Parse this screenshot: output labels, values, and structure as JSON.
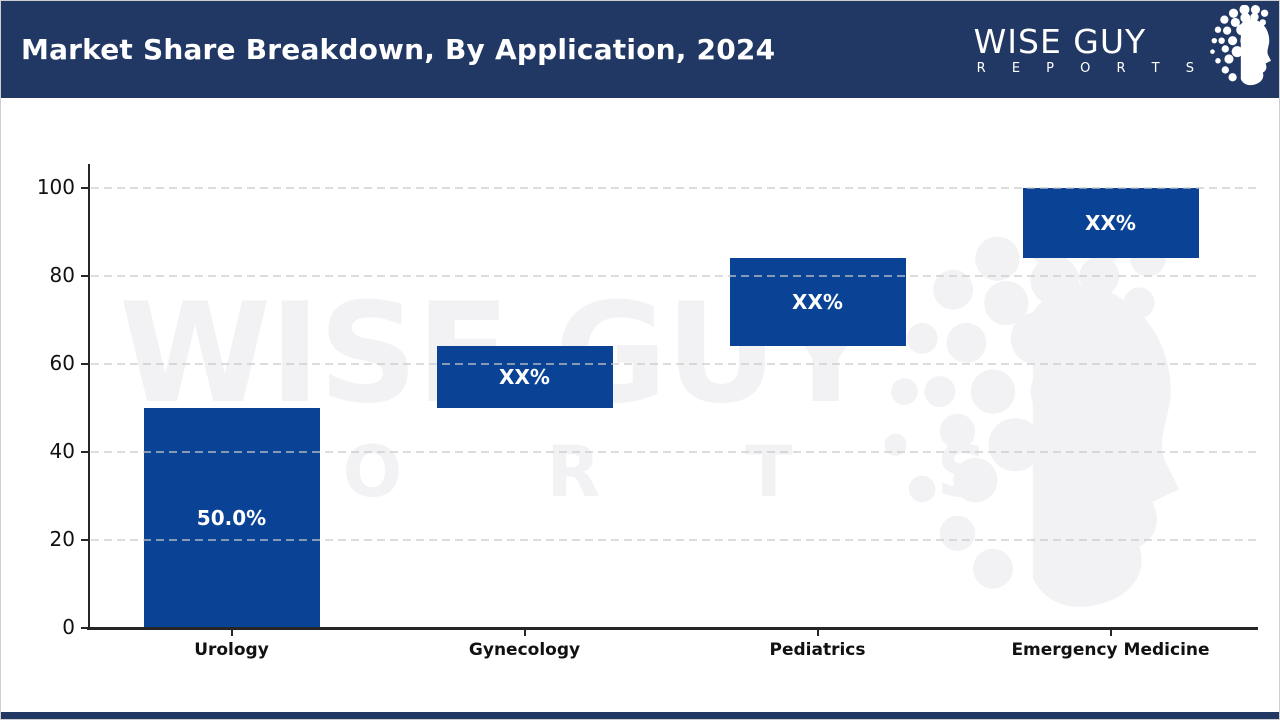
{
  "header": {
    "title": "Market Share Breakdown, By Application, 2024",
    "logo": {
      "line1": "WISE GUY",
      "line2": "R E P O R T S"
    }
  },
  "watermark": {
    "line1": "WISE GUY",
    "line2": "P O R T S"
  },
  "colors": {
    "header_bg": "#223864",
    "footer_bg": "#223864",
    "bar_fill": "#0a4296",
    "bar_label": "#ffffff",
    "axis": "#262626",
    "gridline": "#d9d9d9",
    "watermark": "#f2f2f4"
  },
  "chart_data": {
    "type": "bar",
    "subtype": "waterfall",
    "title": "Market Share Breakdown, By Application, 2024",
    "categories": [
      "Urology",
      "Gynecology",
      "Pediatrics",
      "Emergency Medicine"
    ],
    "series": [
      {
        "name": "Market Share (%)",
        "segments": [
          {
            "category": "Urology",
            "start": 0,
            "end": 50,
            "label": "50.0%"
          },
          {
            "category": "Gynecology",
            "start": 50,
            "end": 64,
            "label": "XX%"
          },
          {
            "category": "Pediatrics",
            "start": 64,
            "end": 84,
            "label": "XX%"
          },
          {
            "category": "Emergency Medicine",
            "start": 84,
            "end": 100,
            "label": "XX%"
          }
        ]
      }
    ],
    "xlabel": "",
    "ylabel": "",
    "ylim": [
      0,
      100
    ],
    "yticks": [
      0,
      20,
      40,
      60,
      80,
      100
    ],
    "grid": "horizontal-dashed",
    "legend": "none",
    "bar_value_labels_inside": true
  }
}
